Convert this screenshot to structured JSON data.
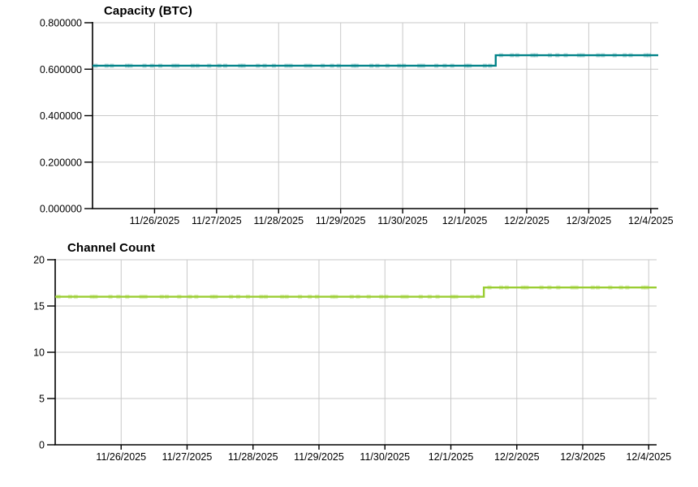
{
  "page": {
    "background_color": "#ffffff",
    "text_color": "#000000",
    "gridline_color": "#c9c9c9",
    "axis_color": "#000000"
  },
  "chart_data": [
    {
      "type": "line",
      "title": "Capacity (BTC)",
      "xlabel": "",
      "ylabel": "",
      "grid": true,
      "legend": "none",
      "line_style": "step-after",
      "x_domain_days": [
        0,
        9.12
      ],
      "x_tick_days": [
        1,
        2,
        3,
        4,
        5,
        6,
        7,
        8,
        9
      ],
      "x_tick_labels": [
        "11/26/2025",
        "11/27/2025",
        "11/28/2025",
        "11/29/2025",
        "11/30/2025",
        "12/1/2025",
        "12/2/2025",
        "12/3/2025",
        "12/4/2025"
      ],
      "ylim": [
        0,
        0.8
      ],
      "y_tick_values": [
        0,
        0.2,
        0.4,
        0.6,
        0.8
      ],
      "y_tick_labels": [
        "0.000000",
        "0.200000",
        "0.400000",
        "0.600000",
        "0.800000"
      ],
      "series": [
        {
          "name": "Capacity (BTC)",
          "color": "#028389",
          "marker_opacity": 0.3,
          "step_segments": [
            {
              "from_day": 0,
              "to_day": 6.5,
              "value": 0.615
            },
            {
              "from_day": 6.5,
              "to_day": 9.12,
              "value": 0.66
            }
          ]
        }
      ]
    },
    {
      "type": "line",
      "title": "Channel Count",
      "xlabel": "",
      "ylabel": "",
      "grid": true,
      "legend": "none",
      "line_style": "step-after",
      "x_domain_days": [
        0,
        9.12
      ],
      "x_tick_days": [
        1,
        2,
        3,
        4,
        5,
        6,
        7,
        8,
        9
      ],
      "x_tick_labels": [
        "11/26/2025",
        "11/27/2025",
        "11/28/2025",
        "11/29/2025",
        "11/30/2025",
        "12/1/2025",
        "12/2/2025",
        "12/3/2025",
        "12/4/2025"
      ],
      "ylim": [
        0,
        20
      ],
      "y_tick_values": [
        0,
        5,
        10,
        15,
        20
      ],
      "y_tick_labels": [
        "0",
        "5",
        "10",
        "15",
        "20"
      ],
      "series": [
        {
          "name": "Channel Count",
          "color": "#9acd32",
          "marker_opacity": 0.35,
          "step_segments": [
            {
              "from_day": 0,
              "to_day": 6.5,
              "value": 16
            },
            {
              "from_day": 6.5,
              "to_day": 9.12,
              "value": 17
            }
          ]
        }
      ]
    }
  ]
}
